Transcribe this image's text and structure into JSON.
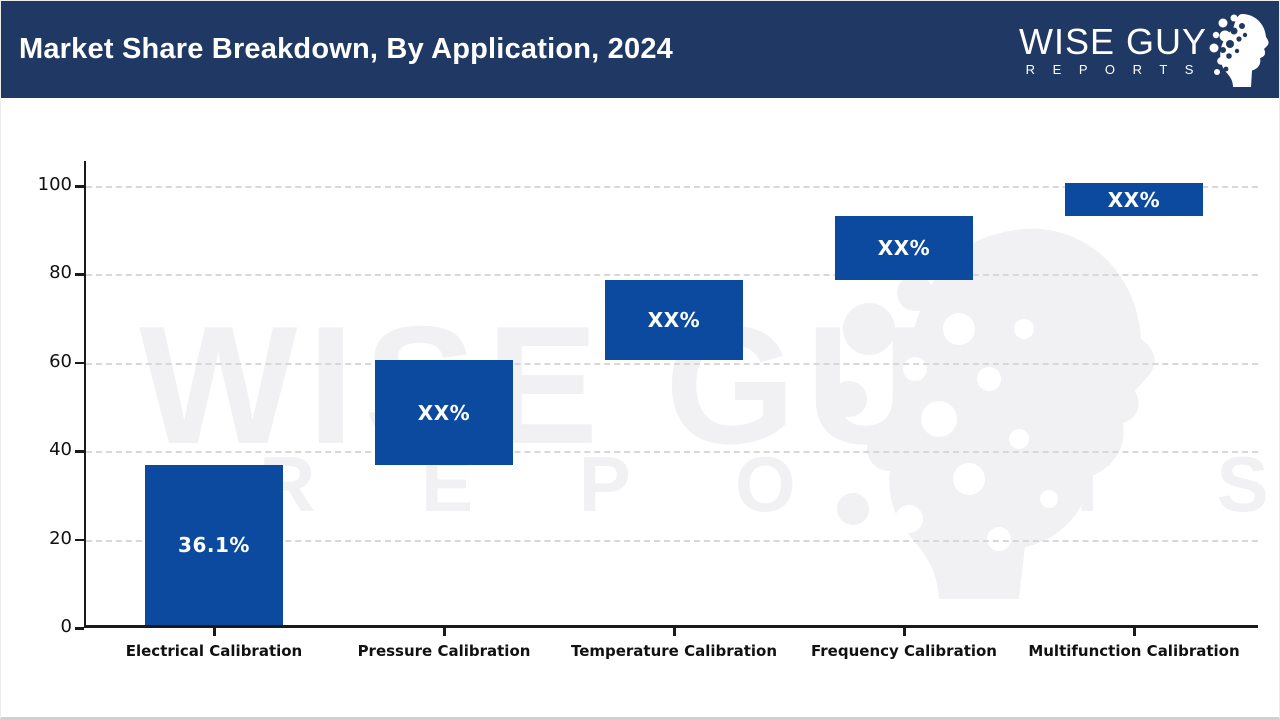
{
  "header": {
    "title": "Market Share Breakdown, By Application, 2024",
    "logo_line1": "WISE GUY",
    "logo_line2": "R E P O R T S"
  },
  "watermark": {
    "line1": "WISE GUY",
    "line2": "R E P O R T S"
  },
  "colors": {
    "header_bg": "#1f3864",
    "bar": "#0b4a9f",
    "bar_label": "#ffffff",
    "grid": "#d8d8d8",
    "axis": "#1a1a1a",
    "watermark": "#f1f1f4"
  },
  "chart_data": {
    "type": "bar",
    "subtype": "waterfall",
    "title": "Market Share Breakdown, By Application, 2024",
    "xlabel": "",
    "ylabel": "",
    "ylim": [
      0,
      105.7
    ],
    "yticks": [
      0,
      20,
      40,
      60,
      80,
      100
    ],
    "grid": "horizontal-dashed",
    "legend": "none",
    "categories": [
      "Electrical Calibration",
      "Pressure Calibration",
      "Temperature Calibration",
      "Frequency Calibration",
      "Multifunction Calibration"
    ],
    "segments": [
      {
        "category": "Electrical Calibration",
        "label": "36.1%",
        "start": 0,
        "end": 36.1,
        "value": 36.1
      },
      {
        "category": "Pressure Calibration",
        "label": "XX%",
        "start": 36.1,
        "end": 60,
        "value": 23.9
      },
      {
        "category": "Temperature Calibration",
        "label": "XX%",
        "start": 60,
        "end": 78,
        "value": 18.0
      },
      {
        "category": "Frequency Calibration",
        "label": "XX%",
        "start": 78,
        "end": 92.5,
        "value": 14.5
      },
      {
        "category": "Multifunction Calibration",
        "label": "XX%",
        "start": 92.5,
        "end": 100,
        "value": 7.5
      }
    ]
  }
}
